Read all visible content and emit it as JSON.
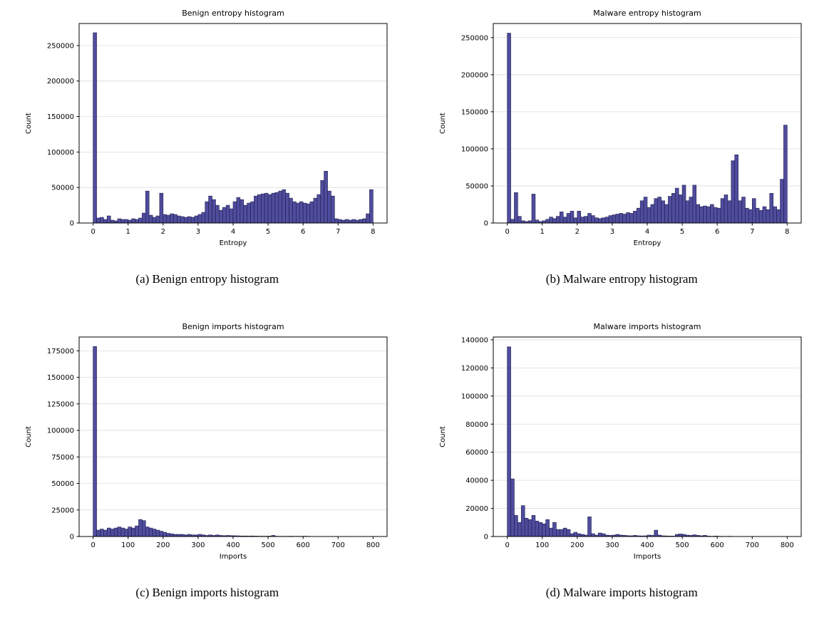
{
  "page": {
    "background": "#ffffff"
  },
  "colors": {
    "bar_fill": "#504d9e",
    "bar_edge": "#1c1b4b",
    "grid": "#dcdcdc",
    "axis": "#000000",
    "text": "#000000"
  },
  "captions": [
    "(a) Benign entropy histogram",
    "(b) Malware entropy histogram",
    "(c) Benign imports histogram",
    "(d) Malware imports histogram"
  ],
  "chart_data": [
    {
      "type": "bar",
      "title": "Benign entropy histogram",
      "xlabel": "Entropy",
      "ylabel": "Count",
      "legend": "none",
      "grid": "horizontal",
      "bin_start": 0,
      "bin_width": 0.1,
      "xlim": [
        -0.4,
        8.4
      ],
      "ylim": [
        0,
        281000
      ],
      "xticks": [
        0,
        1,
        2,
        3,
        4,
        5,
        6,
        7,
        8
      ],
      "yticks": [
        0,
        50000,
        100000,
        150000,
        200000,
        250000
      ],
      "values": [
        268000,
        7000,
        8000,
        5000,
        10000,
        4000,
        3000,
        6000,
        5000,
        5000,
        4000,
        6000,
        5000,
        7000,
        14000,
        45000,
        11000,
        8000,
        10000,
        42000,
        12000,
        11000,
        13000,
        12000,
        10000,
        9000,
        8000,
        9000,
        8000,
        10000,
        12000,
        15000,
        30000,
        38000,
        33000,
        25000,
        18000,
        22000,
        25000,
        20000,
        30000,
        36000,
        33000,
        25000,
        28000,
        30000,
        38000,
        40000,
        41000,
        42000,
        40000,
        42000,
        43000,
        45000,
        47000,
        42000,
        35000,
        30000,
        28000,
        30000,
        28000,
        27000,
        30000,
        35000,
        40000,
        60000,
        73000,
        45000,
        38000,
        6000,
        5000,
        4000,
        5000,
        4000,
        5000,
        4000,
        5000,
        6000,
        13000,
        47000
      ]
    },
    {
      "type": "bar",
      "title": "Malware entropy histogram",
      "xlabel": "Entropy",
      "ylabel": "Count",
      "legend": "none",
      "grid": "horizontal",
      "bin_start": 0,
      "bin_width": 0.1,
      "xlim": [
        -0.4,
        8.4
      ],
      "ylim": [
        0,
        269000
      ],
      "xticks": [
        0,
        1,
        2,
        3,
        4,
        5,
        6,
        7,
        8
      ],
      "yticks": [
        0,
        50000,
        100000,
        150000,
        200000,
        250000
      ],
      "values": [
        256000,
        5000,
        41000,
        9000,
        3000,
        2000,
        3000,
        39000,
        4000,
        2000,
        3000,
        5000,
        8000,
        6000,
        9000,
        15000,
        8000,
        13000,
        16000,
        7000,
        16000,
        8000,
        9000,
        13000,
        10000,
        7000,
        6000,
        7000,
        8000,
        10000,
        11000,
        12000,
        13000,
        12000,
        14000,
        13000,
        16000,
        20000,
        30000,
        35000,
        21000,
        25000,
        33000,
        35000,
        30000,
        25000,
        36000,
        40000,
        47000,
        38000,
        51000,
        30000,
        35000,
        51000,
        25000,
        22000,
        23000,
        22000,
        25000,
        21000,
        20000,
        33000,
        38000,
        30000,
        84000,
        92000,
        30000,
        35000,
        20000,
        18000,
        33000,
        20000,
        17000,
        22000,
        18000,
        40000,
        22000,
        18000,
        59000,
        132000
      ]
    },
    {
      "type": "bar",
      "title": "Benign imports histogram",
      "xlabel": "Imports",
      "ylabel": "Count",
      "legend": "none",
      "grid": "horizontal",
      "bin_start": 0,
      "bin_width": 10,
      "xlim": [
        -40,
        840
      ],
      "ylim": [
        0,
        188000
      ],
      "xticks": [
        0,
        100,
        200,
        300,
        400,
        500,
        600,
        700,
        800
      ],
      "yticks": [
        0,
        25000,
        50000,
        75000,
        100000,
        125000,
        150000,
        175000
      ],
      "values": [
        179000,
        6000,
        7000,
        6000,
        8000,
        7000,
        8000,
        9000,
        8000,
        7000,
        9000,
        8000,
        10000,
        16000,
        15000,
        9000,
        8000,
        7000,
        6000,
        5000,
        4000,
        3000,
        2500,
        2000,
        2000,
        2000,
        1500,
        2000,
        1500,
        1500,
        2000,
        1500,
        1000,
        1500,
        1000,
        1500,
        1000,
        800,
        1000,
        800,
        700,
        600,
        500,
        500,
        400,
        500,
        400,
        300,
        300,
        300,
        400,
        1000,
        300,
        200,
        200,
        200,
        300,
        200,
        200,
        200,
        300,
        200,
        100,
        100,
        100,
        100,
        100,
        100,
        100,
        100,
        100,
        100,
        100,
        100,
        100,
        100,
        100,
        100,
        100,
        100
      ]
    },
    {
      "type": "bar",
      "title": "Malware imports histogram",
      "xlabel": "Imports",
      "ylabel": "Count",
      "legend": "none",
      "grid": "horizontal",
      "bin_start": 0,
      "bin_width": 10,
      "xlim": [
        -40,
        840
      ],
      "ylim": [
        0,
        142000
      ],
      "xticks": [
        0,
        100,
        200,
        300,
        400,
        500,
        600,
        700,
        800
      ],
      "yticks": [
        0,
        20000,
        40000,
        60000,
        80000,
        100000,
        120000,
        140000
      ],
      "values": [
        135000,
        41000,
        15000,
        10000,
        22000,
        13000,
        12000,
        15000,
        11000,
        10000,
        9000,
        12000,
        6000,
        10000,
        5000,
        5000,
        6000,
        5000,
        2000,
        3000,
        2000,
        1500,
        1000,
        14000,
        2000,
        1000,
        2500,
        2000,
        1000,
        800,
        1000,
        1500,
        1000,
        800,
        600,
        500,
        800,
        500,
        400,
        500,
        1000,
        800,
        4500,
        1000,
        500,
        400,
        300,
        300,
        1500,
        1800,
        1500,
        1000,
        800,
        1200,
        800,
        500,
        800,
        300,
        200,
        300,
        200,
        150,
        100,
        200,
        100,
        100,
        100,
        100,
        100,
        100,
        100,
        100,
        100,
        100,
        100,
        100,
        100,
        100,
        100,
        100
      ]
    }
  ]
}
